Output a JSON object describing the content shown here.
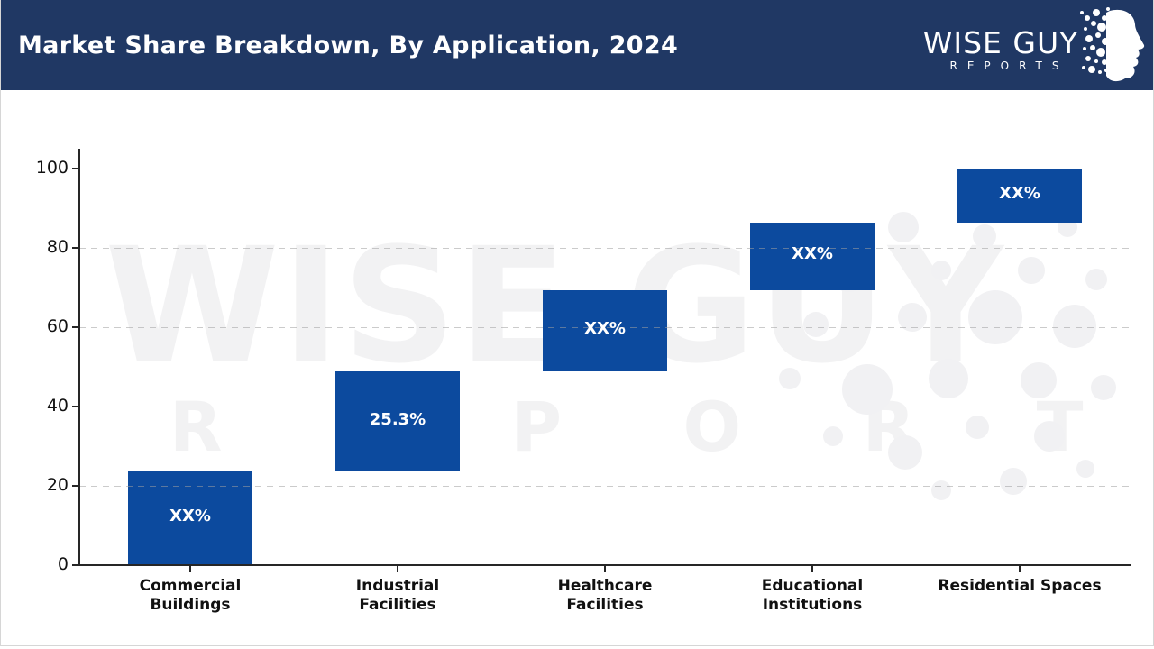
{
  "header": {
    "title": "Market Share Breakdown, By Application, 2024",
    "logo_line1": "WISE GUY",
    "logo_line2": "REPORTS"
  },
  "watermark": {
    "line1": "WISE GUY",
    "line2": "R E P O R T S"
  },
  "chart_data": {
    "type": "bar",
    "subtype": "floating-segment-waterfall",
    "title": "Market Share Breakdown, By Application, 2024",
    "categories": [
      "Commercial Buildings",
      "Industrial Facilities",
      "Healthcare Facilities",
      "Educational Institutions",
      "Residential Spaces"
    ],
    "category_lines": [
      [
        "Commercial",
        "Buildings"
      ],
      [
        "Industrial",
        "Facilities"
      ],
      [
        "Healthcare",
        "Facilities"
      ],
      [
        "Educational",
        "Institutions"
      ],
      [
        "Residential Spaces"
      ]
    ],
    "bars": [
      {
        "category": "Commercial Buildings",
        "start": 0,
        "end": 23.6,
        "label": "XX%"
      },
      {
        "category": "Industrial Facilities",
        "start": 23.6,
        "end": 48.9,
        "label": "25.3%"
      },
      {
        "category": "Healthcare Facilities",
        "start": 48.9,
        "end": 69.3,
        "label": "XX%"
      },
      {
        "category": "Educational Institutions",
        "start": 69.3,
        "end": 86.4,
        "label": "XX%"
      },
      {
        "category": "Residential Spaces",
        "start": 86.4,
        "end": 100,
        "label": "XX%"
      }
    ],
    "yticks": [
      0,
      20,
      40,
      60,
      80,
      100
    ],
    "ylim": [
      0,
      105
    ],
    "xlabel": "",
    "ylabel": "",
    "grid": "horizontal-dashed",
    "legend": "none",
    "bar_color": "#0c4a9e"
  },
  "colors": {
    "header_bg": "#203864",
    "bar": "#0c4a9e",
    "grid": "#d9d9d9",
    "axis": "#262626",
    "watermark": "#f2f2f3"
  }
}
